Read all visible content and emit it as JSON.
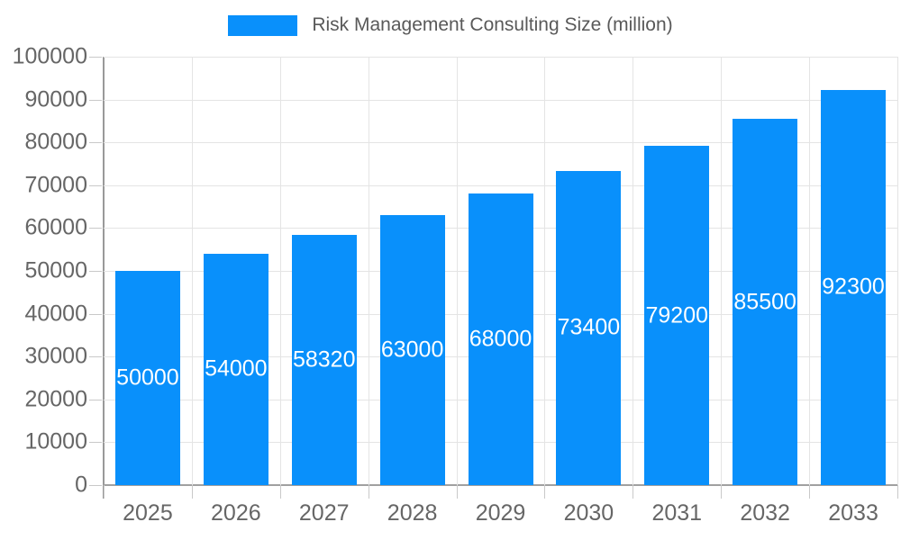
{
  "legend": {
    "label": "Risk Management Consulting Size (million)",
    "swatch_color": "#0990FB"
  },
  "chart_data": {
    "type": "bar",
    "title": "Risk Management Consulting Size (million)",
    "series_name": "Risk Management Consulting Size (million)",
    "categories": [
      "2025",
      "2026",
      "2027",
      "2028",
      "2029",
      "2030",
      "2031",
      "2032",
      "2033"
    ],
    "values": [
      50000,
      54000,
      58320,
      63000,
      68000,
      73400,
      79200,
      85500,
      92300
    ],
    "value_labels": [
      "50000",
      "54000",
      "58320",
      "63000",
      "68000",
      "73400",
      "79200",
      "85500",
      "92300"
    ],
    "xlabel": "",
    "ylabel": "",
    "ylim": [
      0,
      100000
    ],
    "ytick_step": 10000,
    "ytick_labels": [
      "0",
      "10000",
      "20000",
      "30000",
      "40000",
      "50000",
      "60000",
      "70000",
      "80000",
      "90000",
      "100000"
    ],
    "grid": true,
    "legend_position": "top-center",
    "bar_color": "#0990FB",
    "value_label_color": "#ffffff",
    "axis_label_color": "#666666",
    "grid_color": "#e4e4e4",
    "axis_line_color": "#999999"
  }
}
